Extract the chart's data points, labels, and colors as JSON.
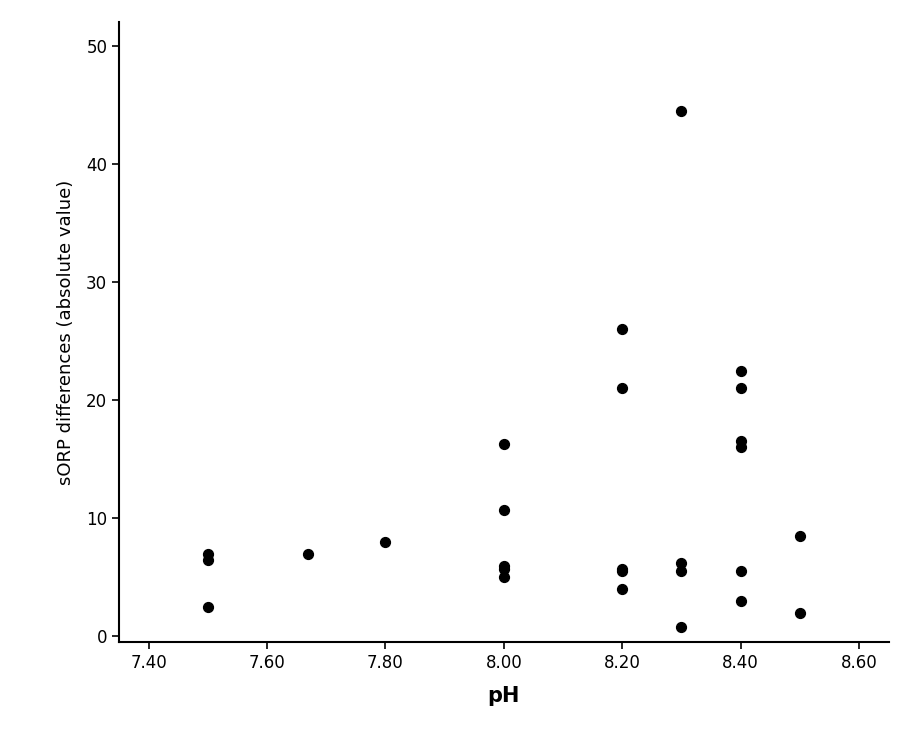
{
  "x": [
    7.5,
    7.5,
    7.5,
    7.67,
    7.8,
    8.0,
    8.0,
    8.0,
    8.0,
    8.0,
    8.2,
    8.2,
    8.2,
    8.2,
    8.2,
    8.3,
    8.3,
    8.3,
    8.3,
    8.4,
    8.4,
    8.4,
    8.4,
    8.4,
    8.4,
    8.5,
    8.5
  ],
  "y": [
    6.5,
    7.0,
    2.5,
    7.0,
    8.0,
    16.3,
    10.7,
    6.0,
    5.7,
    5.0,
    26.0,
    21.0,
    5.7,
    5.5,
    4.0,
    44.5,
    6.2,
    5.5,
    0.8,
    22.5,
    21.0,
    16.5,
    16.0,
    5.5,
    3.0,
    8.5,
    2.0
  ],
  "xlabel": "pH",
  "ylabel": "sORP differences (absolute value)",
  "xlim": [
    7.35,
    8.65
  ],
  "ylim": [
    -0.5,
    52
  ],
  "xticks": [
    7.4,
    7.6,
    7.8,
    8.0,
    8.2,
    8.4,
    8.6
  ],
  "yticks": [
    0,
    10,
    20,
    30,
    40,
    50
  ],
  "marker_color": "#000000",
  "marker_size": 50,
  "background_color": "#ffffff",
  "xlabel_fontsize": 15,
  "ylabel_fontsize": 13,
  "tick_fontsize": 12,
  "spine_linewidth": 1.5
}
